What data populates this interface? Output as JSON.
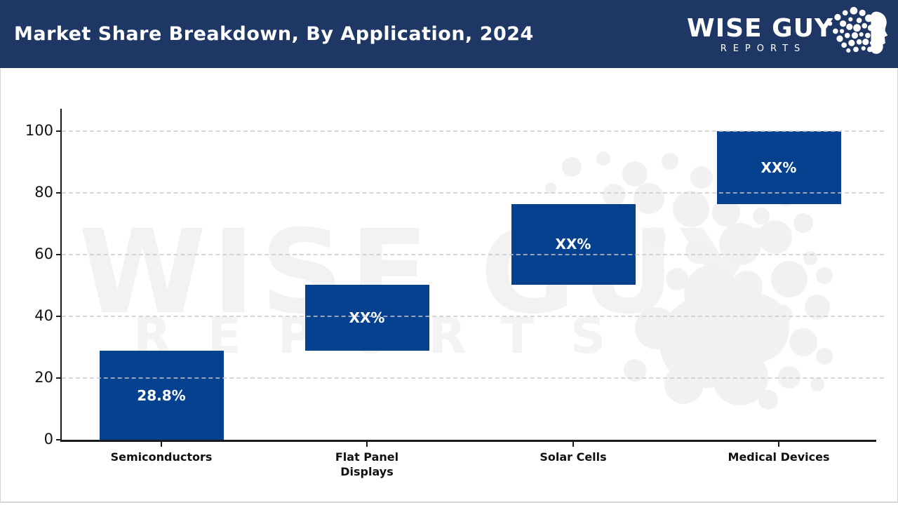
{
  "header": {
    "title": "Market Share Breakdown, By Application, 2024",
    "bg_color": "#1f3765",
    "logo": {
      "line1": "WISE GUY",
      "line2": "REPORTS"
    }
  },
  "watermark": {
    "line1": "WISE GUY",
    "line2": "REPORTS"
  },
  "chart_data": {
    "type": "bar",
    "subtype": "waterfall",
    "title": "Market Share Breakdown, By Application, 2024",
    "xlabel": "",
    "ylabel": "",
    "categories": [
      [
        "Semiconductors"
      ],
      [
        "Flat Panel",
        "Displays"
      ],
      [
        "Solar Cells"
      ],
      [
        "Medical Devices"
      ]
    ],
    "segments": [
      {
        "category": "Semiconductors",
        "start": 0,
        "end": 28.8,
        "label": "28.8%"
      },
      {
        "category": "Flat Panel Displays",
        "start": 28.8,
        "end": 50.2,
        "label": "XX%"
      },
      {
        "category": "Solar Cells",
        "start": 50.2,
        "end": 76.4,
        "label": "XX%"
      },
      {
        "category": "Medical Devices",
        "start": 76.4,
        "end": 100,
        "label": "XX%"
      }
    ],
    "yticks": [
      0,
      20,
      40,
      60,
      80,
      100
    ],
    "ylim": [
      0,
      107
    ],
    "grid": "horizontal-dashed",
    "legend": "none",
    "bar_color": "#05418f",
    "bar_label_color": "#ffffff",
    "axis_color": "#1a1a1a",
    "gridline_color": "#c8c8c8"
  }
}
